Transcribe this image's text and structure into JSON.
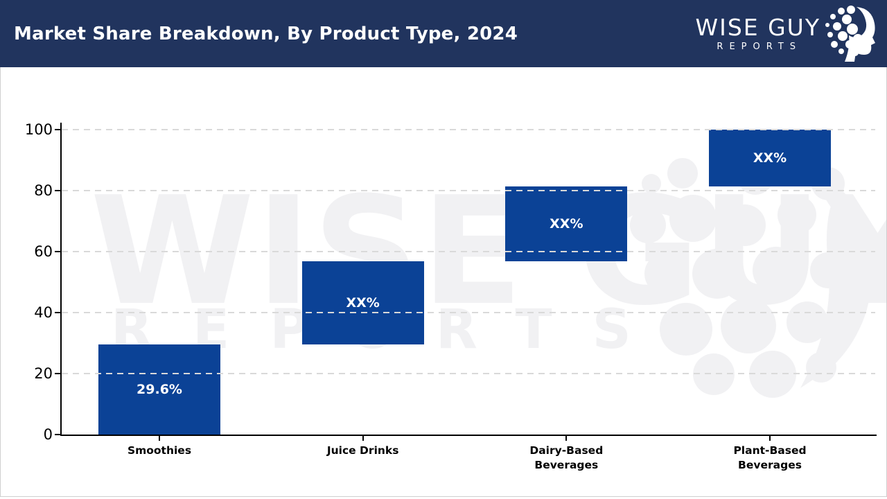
{
  "header": {
    "title": "Market Share Breakdown, By Product Type, 2024",
    "brand_line1": "WISE GUY",
    "brand_line2": "REPORTS"
  },
  "watermark": {
    "line1": "WISE GUY",
    "line2": "REPORTS"
  },
  "colors": {
    "header_bg": "#21345E",
    "bar": "#0B4296",
    "grid": "#D9D9D9",
    "bar_label": "#FFFFFF"
  },
  "chart_data": {
    "type": "bar",
    "subtype": "waterfall",
    "title": "Market Share Breakdown, By Product Type, 2024",
    "categories": [
      "Smoothies",
      "Juice Drinks",
      "Dairy-Based Beverages",
      "Plant-Based Beverages"
    ],
    "segments": [
      {
        "category": "Smoothies",
        "label": "29.6%",
        "start": 0,
        "end": 29.6
      },
      {
        "category": "Juice Drinks",
        "label": "XX%",
        "start": 29.6,
        "end": 56.8
      },
      {
        "category": "Dairy-Based Beverages",
        "label": "XX%",
        "start": 56.8,
        "end": 81.4
      },
      {
        "category": "Plant-Based Beverages",
        "label": "XX%",
        "start": 81.4,
        "end": 100
      }
    ],
    "yticks": [
      0,
      20,
      40,
      60,
      80,
      100
    ],
    "ylim": [
      0,
      100
    ],
    "xlabel": "",
    "ylabel": "",
    "grid": "dashed-horizontal",
    "legend": "none"
  }
}
